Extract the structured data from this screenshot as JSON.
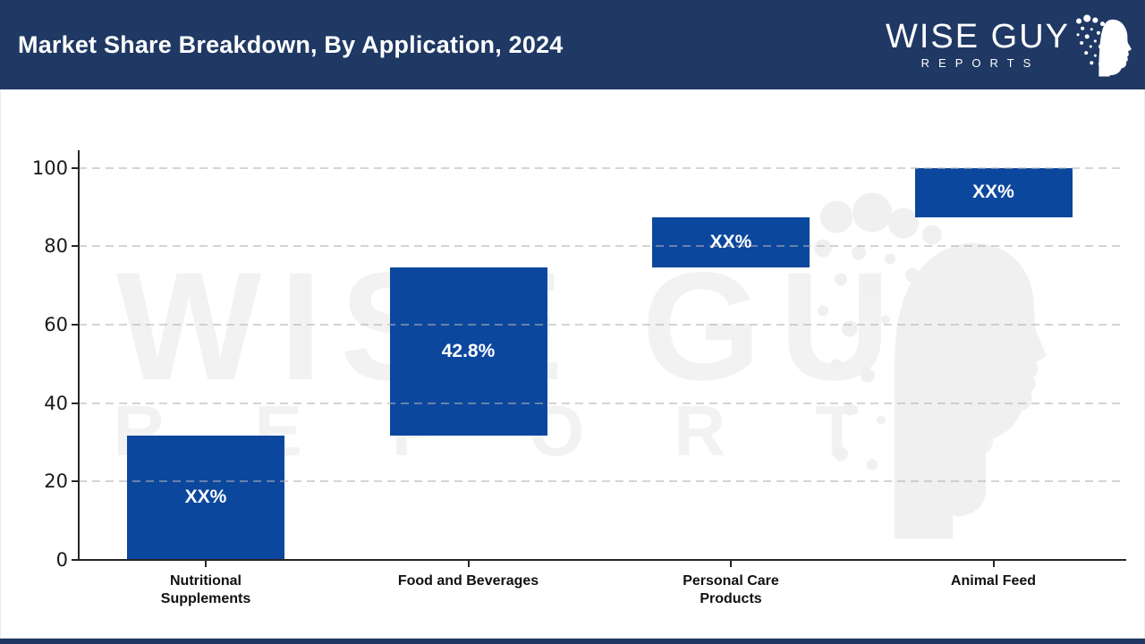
{
  "header": {
    "title": "Market Share Breakdown, By Application, 2024",
    "logo": {
      "line1": "WISE GUY",
      "line2": "REPORTS"
    }
  },
  "watermark": {
    "line1": "WISE GUY",
    "line2": "REPORTS"
  },
  "chart_data": {
    "type": "bar",
    "subtype": "waterfall",
    "title": "Market Share Breakdown, By Application, 2024",
    "categories": [
      [
        "Nutritional",
        "Supplements"
      ],
      [
        "Food and Beverages"
      ],
      [
        "Personal Care",
        "Products"
      ],
      [
        "Animal Feed"
      ]
    ],
    "segments": [
      {
        "start": 0,
        "end": 31.7,
        "label": "XX%"
      },
      {
        "start": 31.7,
        "end": 74.5,
        "label": "42.8%"
      },
      {
        "start": 74.5,
        "end": 87.3,
        "label": "XX%"
      },
      {
        "start": 87.3,
        "end": 100,
        "label": "XX%"
      }
    ],
    "increments": [
      31.7,
      42.8,
      12.8,
      12.7
    ],
    "yticks": [
      0,
      20,
      40,
      60,
      80,
      100
    ],
    "ylim": [
      0,
      104
    ],
    "grid": "dashed-horizontal, drawn above bars",
    "legend": "none",
    "xlabel": "",
    "ylabel": ""
  },
  "colors": {
    "header_bg": "#1f3864",
    "footer_bg": "#1f3864",
    "bar": "#0c479e",
    "bar_label": "#ffffff",
    "axis": "#262626",
    "grid": "#c8c8c8",
    "watermark": "#f2f2f2",
    "title_text": "#ffffff"
  }
}
